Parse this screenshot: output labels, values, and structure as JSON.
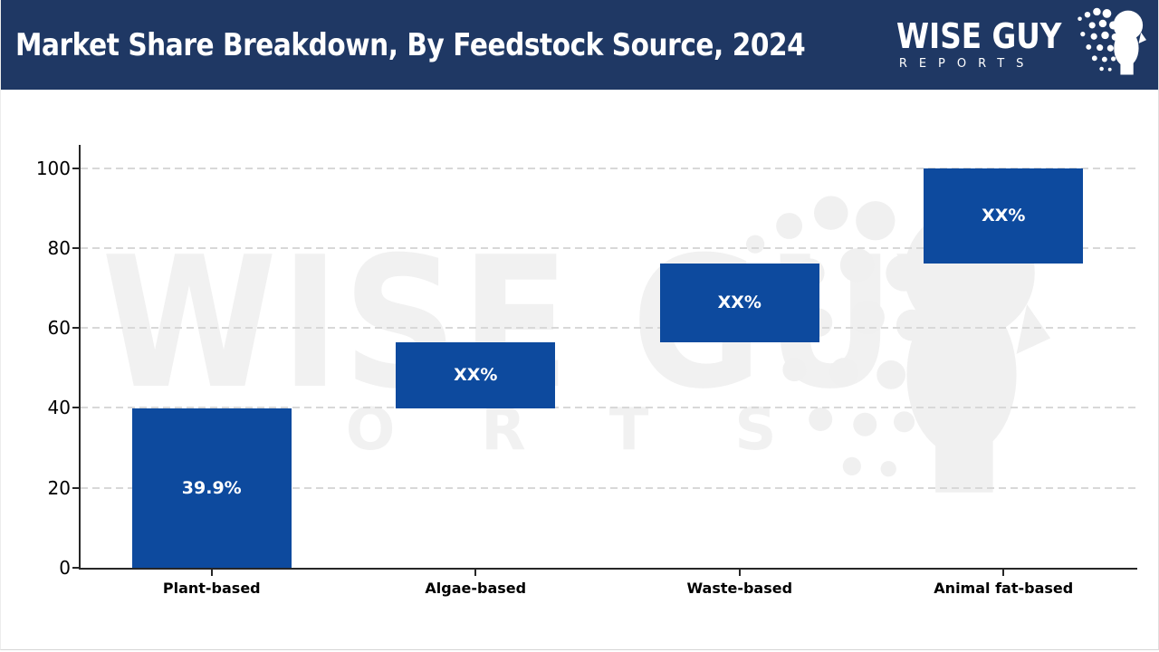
{
  "header": {
    "title": "Market Share Breakdown, By Feedstock Source, 2024",
    "logo": {
      "wordmark": "WISE GUY",
      "sub": "REPORTS"
    }
  },
  "watermark": {
    "wordmark": "WISE GUY",
    "sub": "PORTS"
  },
  "chart_data": {
    "type": "bar",
    "subtype": "waterfall",
    "title": "Market Share Breakdown, By Feedstock Source, 2024",
    "categories": [
      "Plant-based",
      "Algae-based",
      "Waste-based",
      "Animal fat-based"
    ],
    "series": [
      {
        "name": "Market share (%)",
        "segments": [
          {
            "category": "Plant-based",
            "start": 0,
            "end": 39.9,
            "label": "39.9%"
          },
          {
            "category": "Algae-based",
            "start": 39.9,
            "end": 56.5,
            "label": "XX%"
          },
          {
            "category": "Waste-based",
            "start": 56.5,
            "end": 76.1,
            "label": "XX%"
          },
          {
            "category": "Animal fat-based",
            "start": 76.1,
            "end": 100,
            "label": "XX%"
          }
        ]
      }
    ],
    "xlabel": "",
    "ylabel": "",
    "yticks": [
      0,
      20,
      40,
      60,
      80,
      100
    ],
    "ylim": [
      0,
      105
    ],
    "grid": "horizontal-dashed",
    "legend": "none",
    "colors": {
      "bar": "#0d4a9e",
      "bar_label": "#ffffff",
      "grid": "#d8d8d8",
      "axis": "#262626",
      "header_bg": "#1f3864",
      "header_text": "#ffffff",
      "watermark": "#f0f0f0"
    }
  }
}
